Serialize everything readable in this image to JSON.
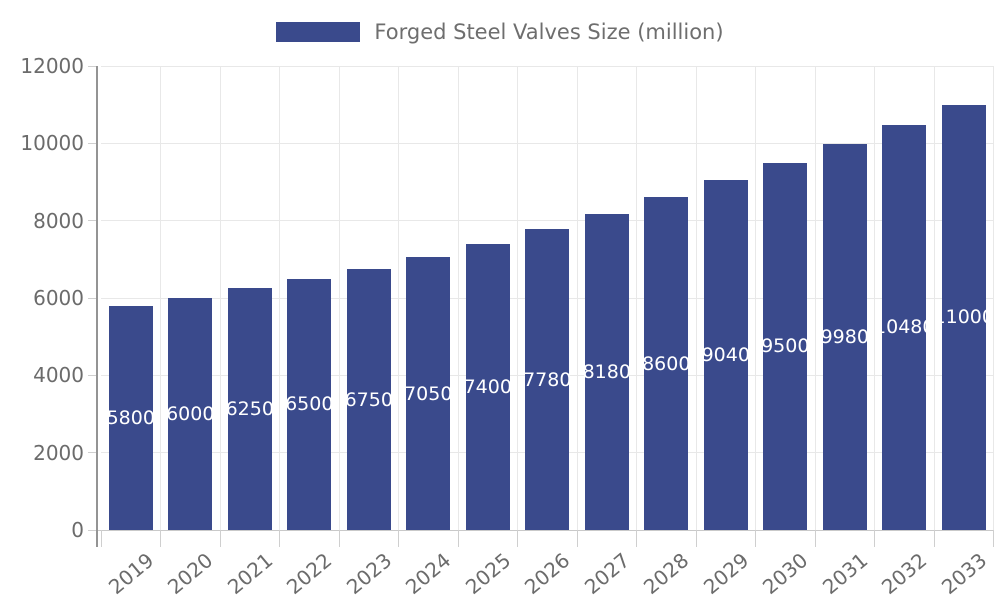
{
  "legend": {
    "label": "Forged Steel Valves Size (million)"
  },
  "colors": {
    "bar": "#3A4A8C",
    "legend_text": "#6e6e6e",
    "axis_text": "#6b6b6b",
    "data_label_text": "#ffffff",
    "gridline": "#e8e8e8",
    "axis_line": "#949494",
    "tick_mark": "#cfcfcf",
    "background": "#ffffff"
  },
  "chart_data": {
    "type": "bar",
    "title": "",
    "xlabel": "",
    "ylabel": "",
    "categories": [
      "2019",
      "2020",
      "2021",
      "2022",
      "2023",
      "2024",
      "2025",
      "2026",
      "2027",
      "2028",
      "2029",
      "2030",
      "2031",
      "2032",
      "2033"
    ],
    "series": [
      {
        "name": "Forged Steel Valves Size (million)",
        "values": [
          5800,
          6000,
          6250,
          6500,
          6750,
          7050,
          7400,
          7780,
          8180,
          8600,
          9040,
          9500,
          9980,
          10480,
          11000
        ]
      }
    ],
    "ylim": [
      0,
      12000
    ],
    "yticks": [
      0,
      2000,
      4000,
      6000,
      8000,
      10000,
      12000
    ],
    "grid": true,
    "legend_position": "top",
    "value_labels": "inside-center-white",
    "x_tick_rotation_deg": -40
  }
}
